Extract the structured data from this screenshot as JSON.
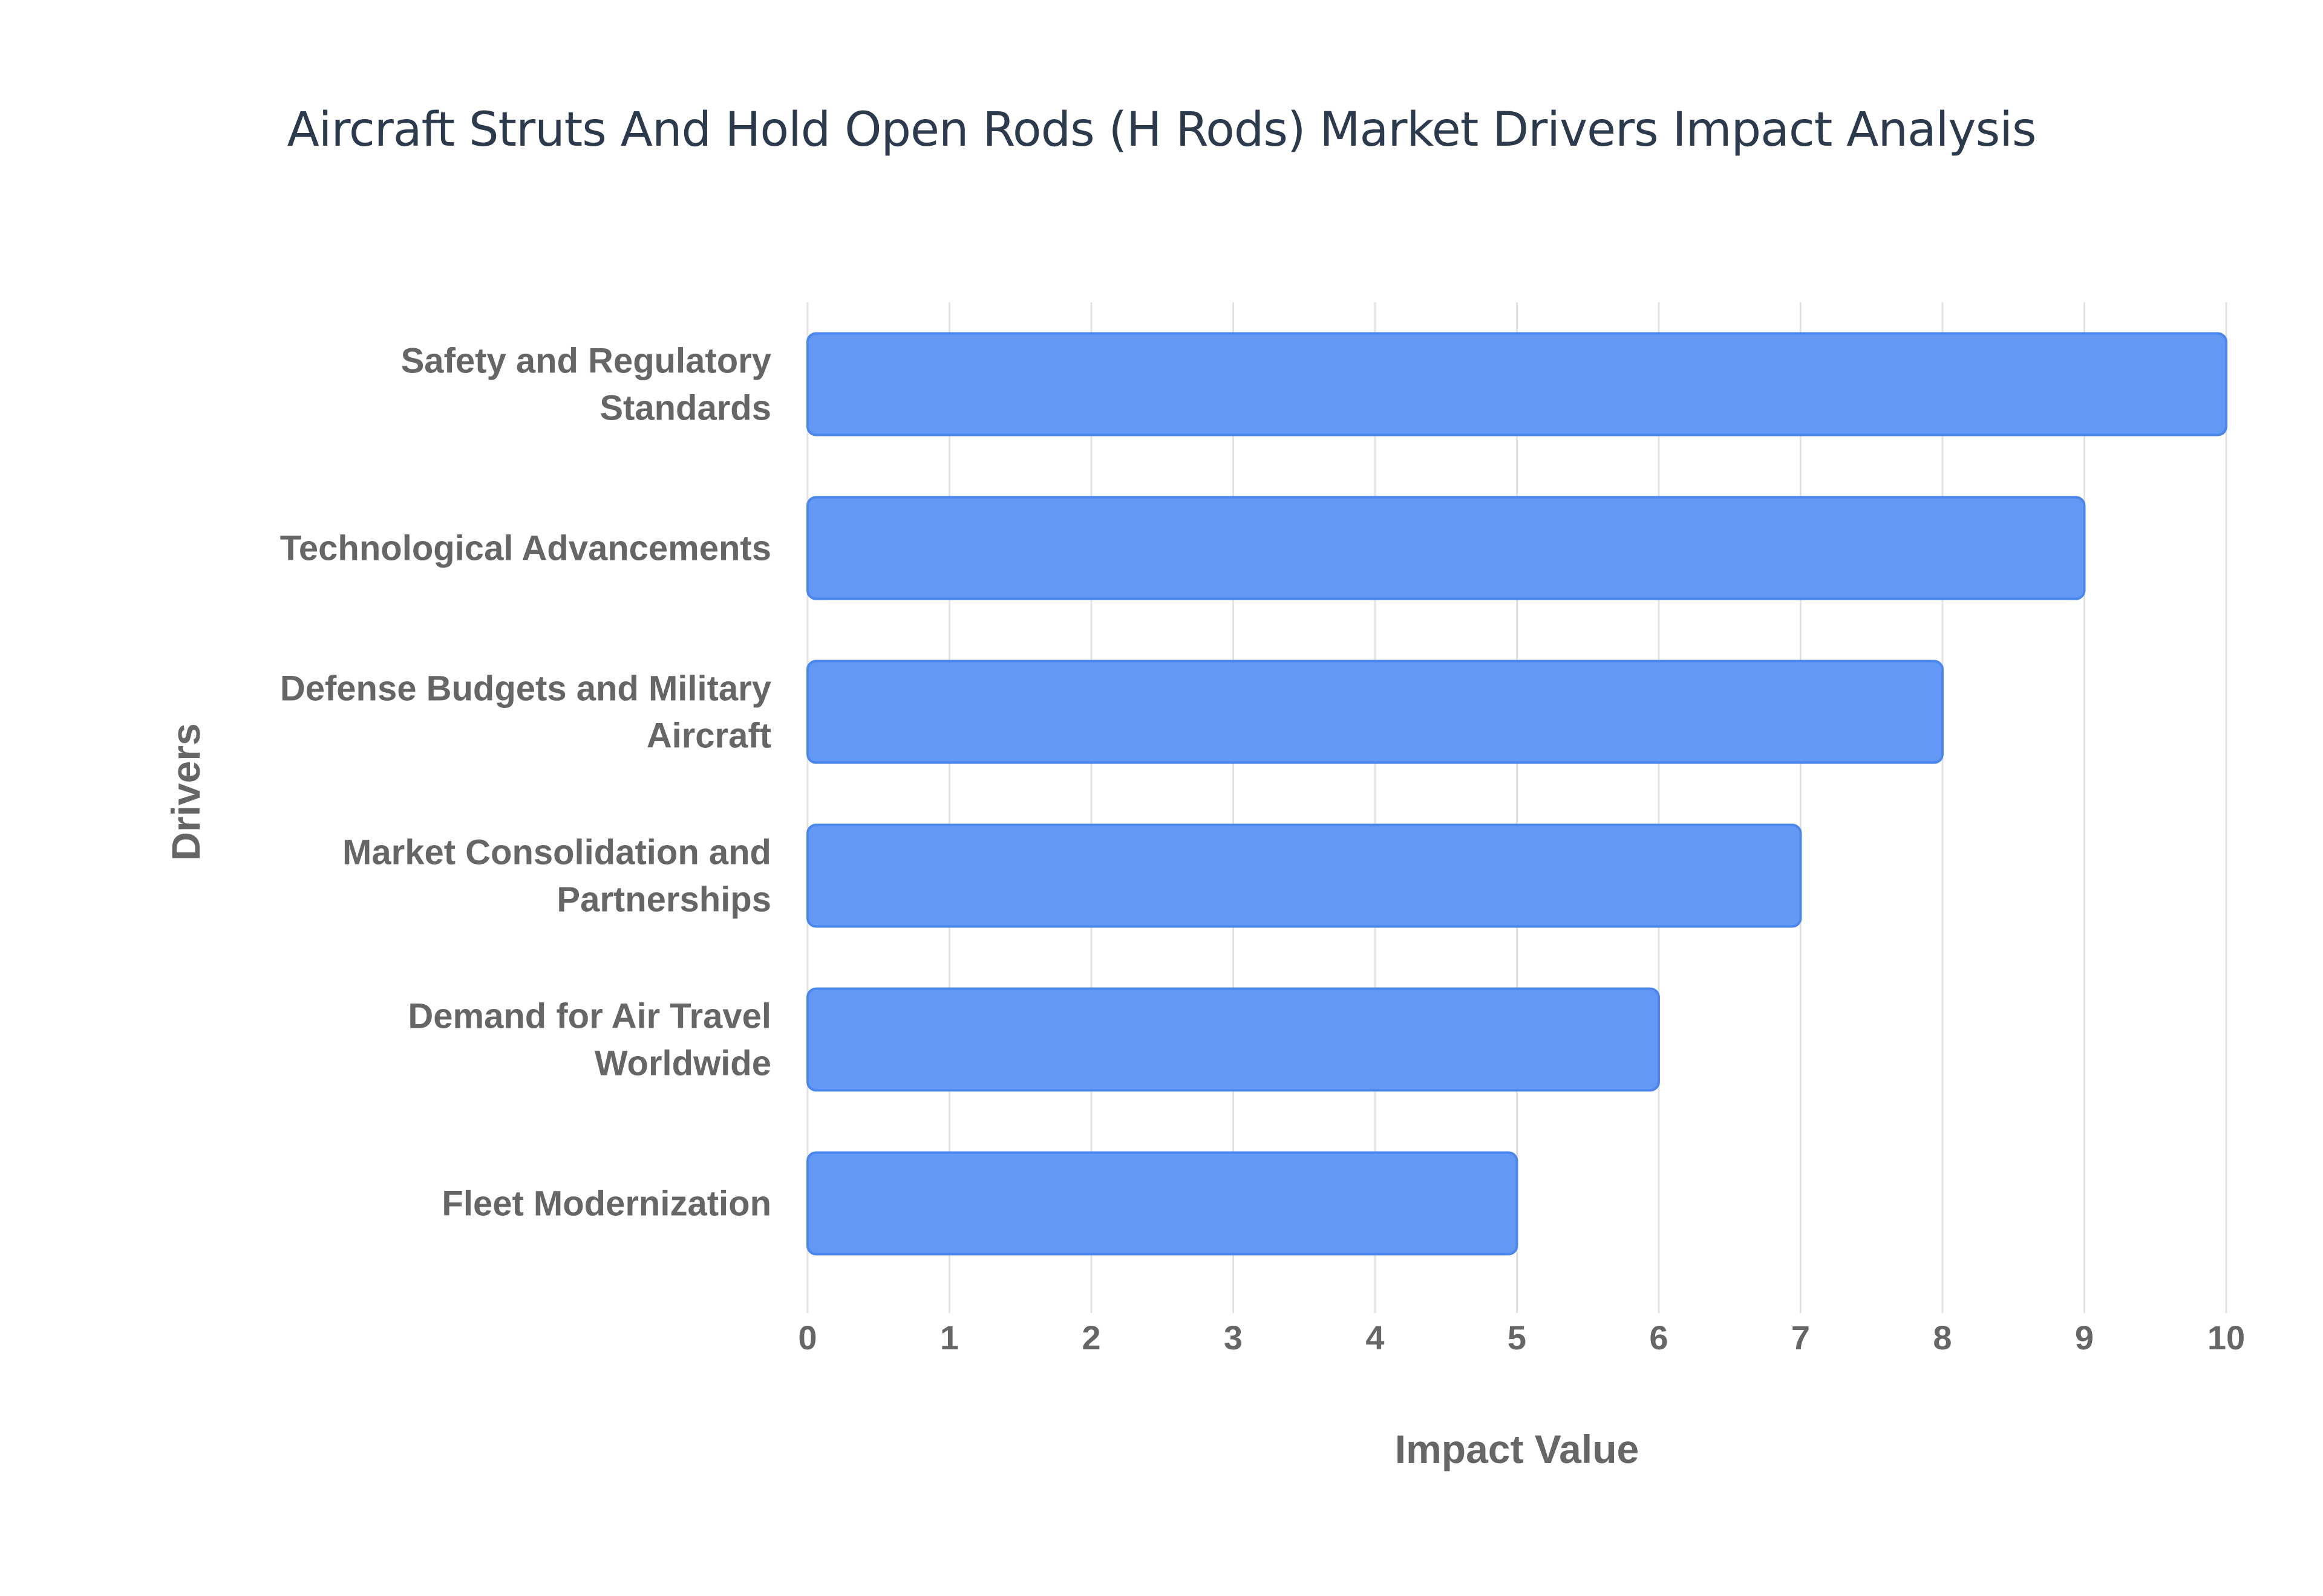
{
  "chart_data": {
    "type": "bar",
    "orientation": "horizontal",
    "title": "Aircraft Struts And Hold Open Rods (H Rods) Market Drivers Impact Analysis",
    "xlabel": "Impact Value",
    "ylabel": "Drivers",
    "xlim": [
      0,
      10
    ],
    "x_ticks": [
      "0",
      "1",
      "2",
      "3",
      "4",
      "5",
      "6",
      "7",
      "8",
      "9",
      "10"
    ],
    "grid": true,
    "legend": "none",
    "categories": [
      [
        "Safety and Regulatory",
        "Standards"
      ],
      [
        "Technological Advancements"
      ],
      [
        "Defense Budgets and Military",
        "Aircraft"
      ],
      [
        "Market Consolidation and",
        "Partnerships"
      ],
      [
        "Demand for Air Travel",
        "Worldwide"
      ],
      [
        "Fleet Modernization"
      ]
    ],
    "values": [
      10,
      9,
      8,
      7,
      6,
      5
    ],
    "colors": {
      "bar_fill": "#6399f5",
      "bar_stroke": "#4a86ec",
      "grid": "#e3e3e3",
      "axis_text": "#666666",
      "title": "#2b3a4d"
    }
  }
}
